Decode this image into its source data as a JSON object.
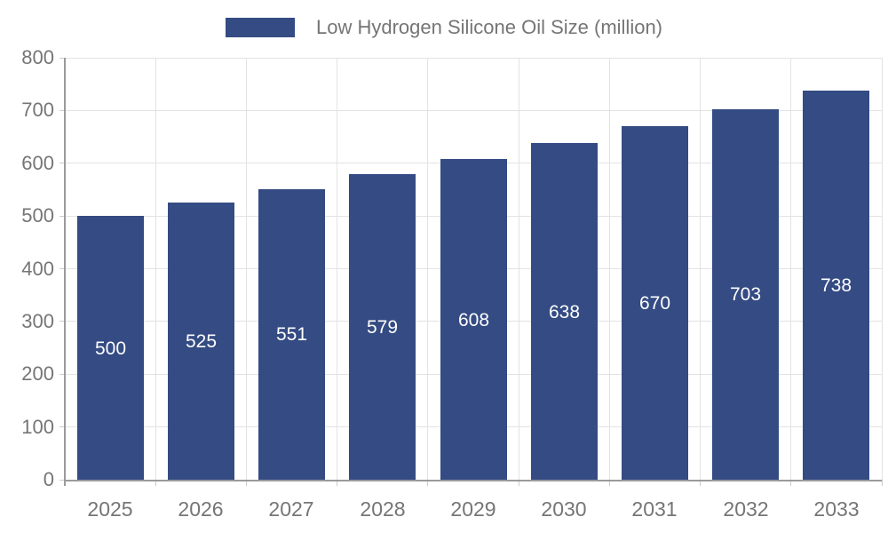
{
  "chart_data": {
    "type": "bar",
    "title": "",
    "legend": [
      "Low Hydrogen Silicone Oil Size (million)"
    ],
    "legend_position": "top",
    "categories": [
      "2025",
      "2026",
      "2027",
      "2028",
      "2029",
      "2030",
      "2031",
      "2032",
      "2033"
    ],
    "values": [
      500,
      525,
      551,
      579,
      608,
      638,
      670,
      703,
      738
    ],
    "xlabel": "",
    "ylabel": "",
    "ylim": [
      0,
      800
    ],
    "yticks": [
      0,
      100,
      200,
      300,
      400,
      500,
      600,
      700,
      800
    ],
    "grid": true,
    "bar_color": "#344b83",
    "bar_label_color": "#ffffff",
    "axis_text_color": "#757575",
    "gridline_color": "#e3e3e3",
    "axis_line_color": "#9a9a9a"
  }
}
